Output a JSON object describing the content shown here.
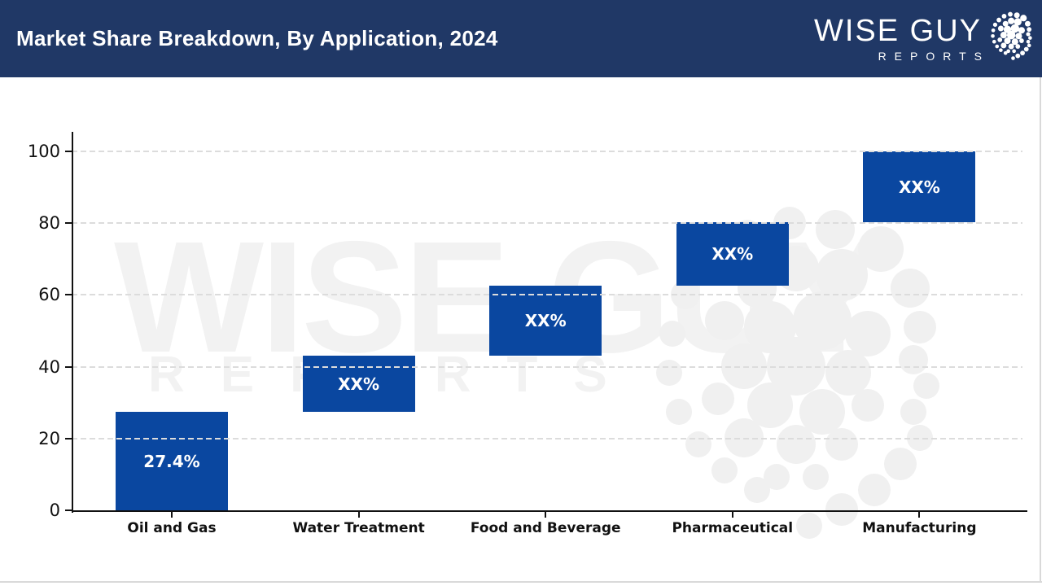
{
  "header": {
    "title": "Market Share Breakdown, By Application, 2024",
    "logo": {
      "brand_top": "WISE GUY",
      "brand_bottom": "REPORTS"
    }
  },
  "watermark": {
    "line1": "WISE GUY",
    "line2": "REPORTS"
  },
  "chart_data": {
    "type": "bar",
    "variant": "waterfall",
    "title": "Market Share Breakdown, By Application, 2024",
    "categories": [
      "Oil and Gas",
      "Water Treatment",
      "Food and Beverage",
      "Pharmaceutical",
      "Manufacturing"
    ],
    "bars": [
      {
        "category": "Oil and Gas",
        "start": 0,
        "end": 27.4,
        "label": "27.4%"
      },
      {
        "category": "Water Treatment",
        "start": 27.4,
        "end": 43.0,
        "label": "XX%"
      },
      {
        "category": "Food and Beverage",
        "start": 43.0,
        "end": 62.5,
        "label": "XX%"
      },
      {
        "category": "Pharmaceutical",
        "start": 62.5,
        "end": 80.2,
        "label": "XX%"
      },
      {
        "category": "Manufacturing",
        "start": 80.2,
        "end": 100,
        "label": "XX%"
      }
    ],
    "xlabel": "",
    "ylabel": "",
    "ylim": [
      0,
      100
    ],
    "yticks": [
      0,
      20,
      40,
      60,
      80,
      100
    ],
    "grid": "horizontal-dashed",
    "legend": false,
    "bar_color": "#0a47a0",
    "bar_label_color": "#ffffff"
  },
  "colors": {
    "header_bg": "#203866",
    "title_text": "#ffffff",
    "axis": "#111111",
    "grid_line": "#dcdcdc",
    "watermark": "#f2f2f2",
    "border_line": "#d9d9d9"
  }
}
